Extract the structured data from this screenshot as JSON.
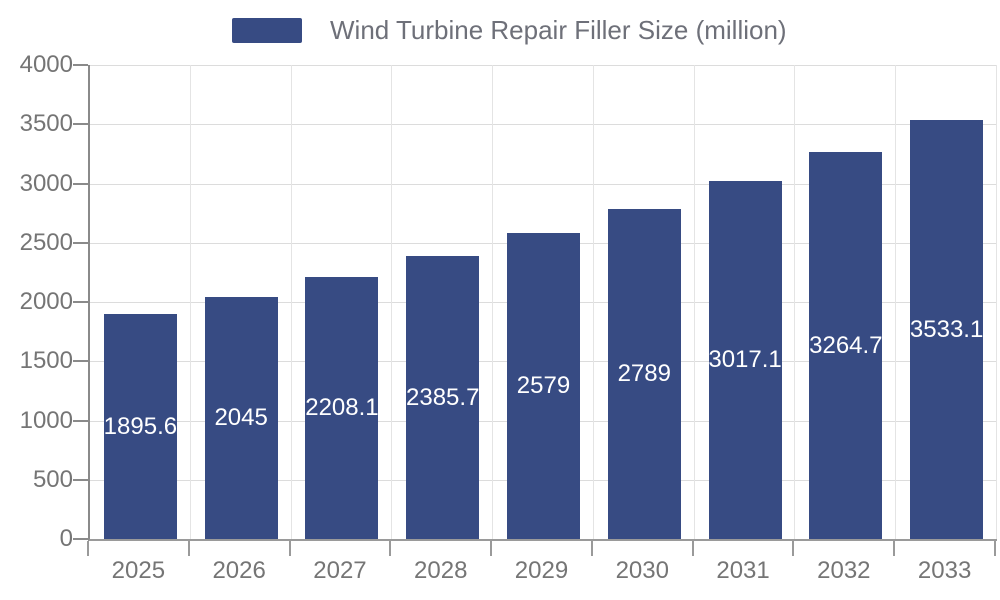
{
  "chart_data": {
    "type": "bar",
    "legend": "Wind Turbine Repair Filler Size (million)",
    "categories": [
      "2025",
      "2026",
      "2027",
      "2028",
      "2029",
      "2030",
      "2031",
      "2032",
      "2033"
    ],
    "values": [
      1895.6,
      2045,
      2208.1,
      2385.7,
      2579,
      2789,
      3017.1,
      3264.7,
      3533.1
    ],
    "y_ticks": [
      0,
      500,
      1000,
      1500,
      2000,
      2500,
      3000,
      3500,
      4000
    ],
    "ylim": [
      0,
      4000
    ],
    "xlabel": "",
    "ylabel": "",
    "grid": "on",
    "legend_position": "top-center",
    "bar_color": "#374b83",
    "label_color": "#ffffff",
    "axis_text_color": "#757575",
    "legend_text_color": "#6e7079"
  }
}
